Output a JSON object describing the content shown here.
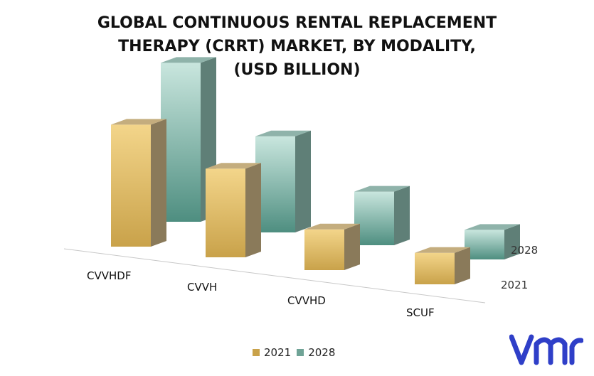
{
  "title_lines": [
    "GLOBAL CONTINUOUS RENTAL REPLACEMENT",
    "THERAPY (CRRT) MARKET, BY MODALITY,",
    "(USD BILLION)"
  ],
  "chart_data": {
    "type": "bar",
    "style": "3d-clustered-depth",
    "title": "GLOBAL CONTINUOUS RENTAL REPLACEMENT THERAPY (CRRT) MARKET, BY MODALITY, (USD BILLION)",
    "categories": [
      "CVVHDF",
      "CVVH",
      "CVVHD",
      "SCUF"
    ],
    "series": [
      {
        "name": "2021",
        "values": [
          3.3,
          2.4,
          1.1,
          0.85
        ],
        "color": "#c9a24a"
      },
      {
        "name": "2028",
        "values": [
          4.3,
          2.6,
          1.45,
          0.8
        ],
        "color": "#6fa396"
      }
    ],
    "depth_labels": [
      "2028",
      "2021"
    ],
    "legend_position": "bottom",
    "grid": false
  },
  "legend": [
    {
      "label": "2021",
      "color": "#c9a24a"
    },
    {
      "label": "2028",
      "color": "#6fa396"
    }
  ],
  "logo": {
    "icon": "vmr-logo",
    "color": "#2f3fc8"
  }
}
